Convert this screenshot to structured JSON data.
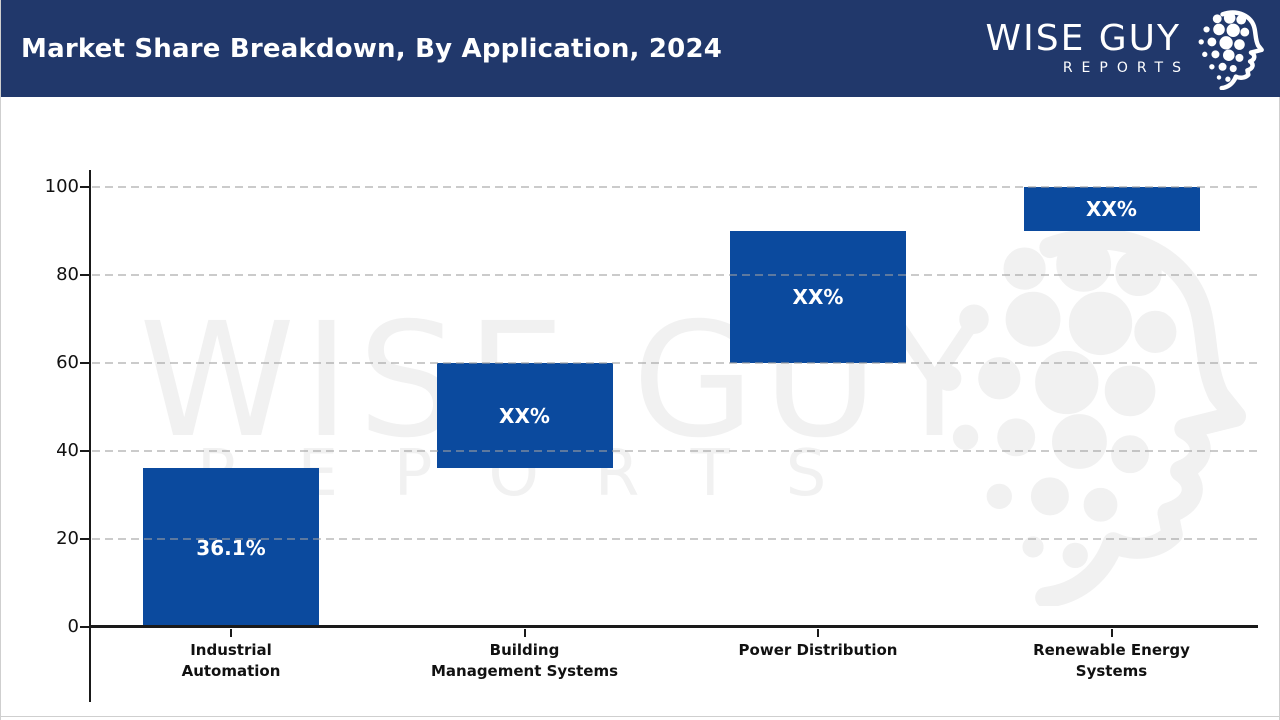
{
  "header": {
    "title": "Market Share Breakdown, By Application, 2024",
    "logo_line1": "WISE GUY",
    "logo_line2": "REPORTS"
  },
  "watermark": {
    "line1": "WISE GUY",
    "line2": "REPORTS"
  },
  "colors": {
    "header_bg": "#21386B",
    "bar": "#0B4A9E",
    "grid": "#c8c8c8",
    "axis": "#1a1a1a",
    "watermark": "#f1f1f1"
  },
  "chart_data": {
    "type": "bar",
    "subtype": "waterfall",
    "title": "Market Share Breakdown, By Application, 2024",
    "xlabel": "",
    "ylabel": "",
    "ylim": [
      0,
      100
    ],
    "yticks": [
      0,
      20,
      40,
      60,
      80,
      100
    ],
    "grid": true,
    "legend": false,
    "categories": [
      [
        "Industrial",
        "Automation"
      ],
      [
        "Building",
        "Management Systems"
      ],
      [
        "Power Distribution"
      ],
      [
        "Renewable Energy",
        "Systems"
      ]
    ],
    "series": [
      {
        "name": "Market Share",
        "segments": [
          {
            "category": "Industrial Automation",
            "start": 0,
            "end": 36.1,
            "label": "36.1%"
          },
          {
            "category": "Building Management Systems",
            "start": 36.1,
            "end": 60,
            "label": "XX%"
          },
          {
            "category": "Power Distribution",
            "start": 60,
            "end": 90,
            "label": "XX%"
          },
          {
            "category": "Renewable Energy Systems",
            "start": 90,
            "end": 100,
            "label": "XX%"
          }
        ]
      }
    ]
  }
}
